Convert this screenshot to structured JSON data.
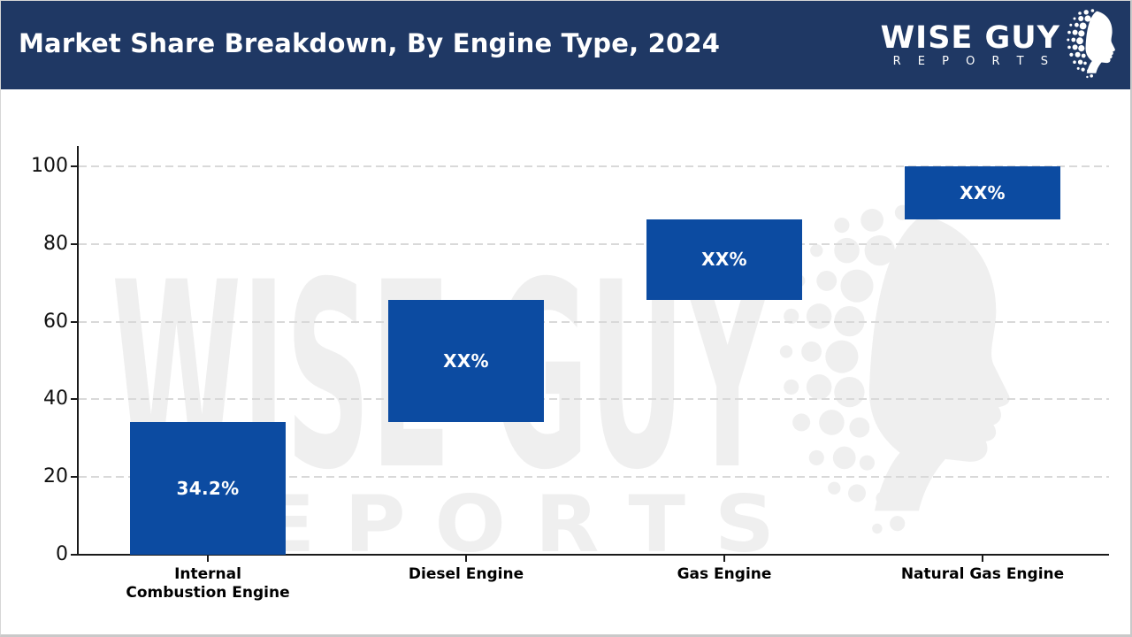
{
  "header": {
    "title": "Market Share Breakdown, By Engine Type, 2024",
    "bg_color": "#1f3864",
    "logo": {
      "line1": "WISE GUY",
      "line2": "R E P O R T S"
    }
  },
  "watermark": {
    "line1": "WISE GUY",
    "line2": "R E P O R T S",
    "color": "#efefef"
  },
  "chart_data": {
    "type": "bar",
    "subtype": "waterfall",
    "title": "Market Share Breakdown, By Engine Type, 2024",
    "xlabel": "",
    "ylabel": "",
    "categories": [
      "Internal\nCombustion Engine",
      "Diesel Engine",
      "Gas Engine",
      "Natural Gas Engine"
    ],
    "segments": [
      {
        "category": "Internal Combustion Engine",
        "start": 0,
        "end": 34.2,
        "label": "34.2%"
      },
      {
        "category": "Diesel Engine",
        "start": 34.2,
        "end": 65.6,
        "label": "XX%"
      },
      {
        "category": "Gas Engine",
        "start": 65.6,
        "end": 86.4,
        "label": "XX%"
      },
      {
        "category": "Natural Gas Engine",
        "start": 86.4,
        "end": 100,
        "label": "XX%"
      }
    ],
    "yticks": [
      0,
      20,
      40,
      60,
      80,
      100
    ],
    "ylim": [
      0,
      105
    ],
    "grid": "horizontal-dashed",
    "legend": "none",
    "bar_color": "#0c4ba1",
    "grid_color": "#d9d9d9",
    "axis_color": "#1a1a1a"
  }
}
